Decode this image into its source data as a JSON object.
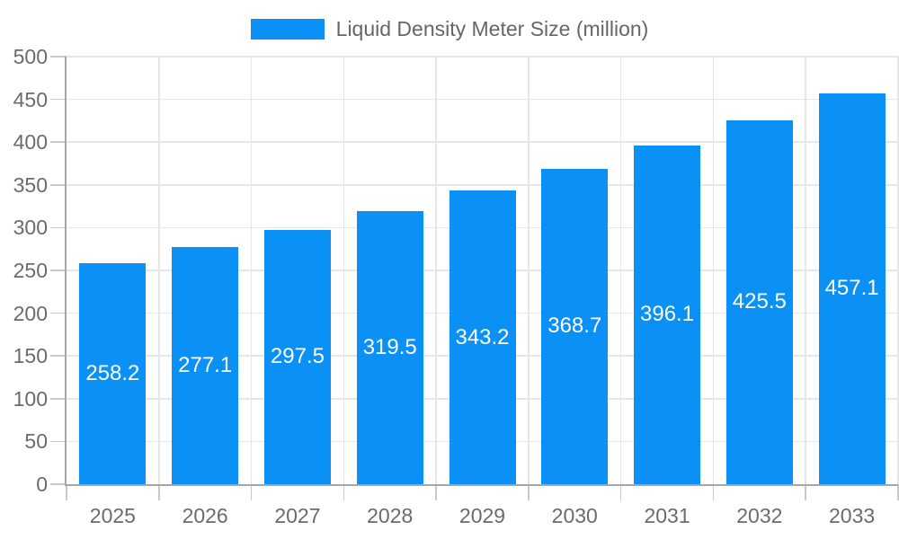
{
  "legend": {
    "label": "Liquid Density Meter Size (million)"
  },
  "colors": {
    "bar": "#0b90f5",
    "grid": "#e6e6e6",
    "tick": "#c9c9c9",
    "axis": "#a6a6a6",
    "axis_label_text": "#6b6b6b",
    "legend_text": "#666666",
    "bar_label_text": "#ffffff",
    "background": "#ffffff"
  },
  "chart_data": {
    "type": "bar",
    "title": "Liquid Density Meter Size (million)",
    "categories": [
      "2025",
      "2026",
      "2027",
      "2028",
      "2029",
      "2030",
      "2031",
      "2032",
      "2033"
    ],
    "values": [
      258.2,
      277.1,
      297.5,
      319.5,
      343.2,
      368.7,
      396.1,
      425.5,
      457.1
    ],
    "series_name": "Liquid Density Meter Size (million)",
    "xlabel": "",
    "ylabel": "",
    "ylim": [
      0,
      500
    ],
    "yticks": [
      0,
      50,
      100,
      150,
      200,
      250,
      300,
      350,
      400,
      450,
      500
    ],
    "grid": true,
    "legend_position": "top",
    "bar_labels_shown": true,
    "bar_label_position": "center"
  }
}
